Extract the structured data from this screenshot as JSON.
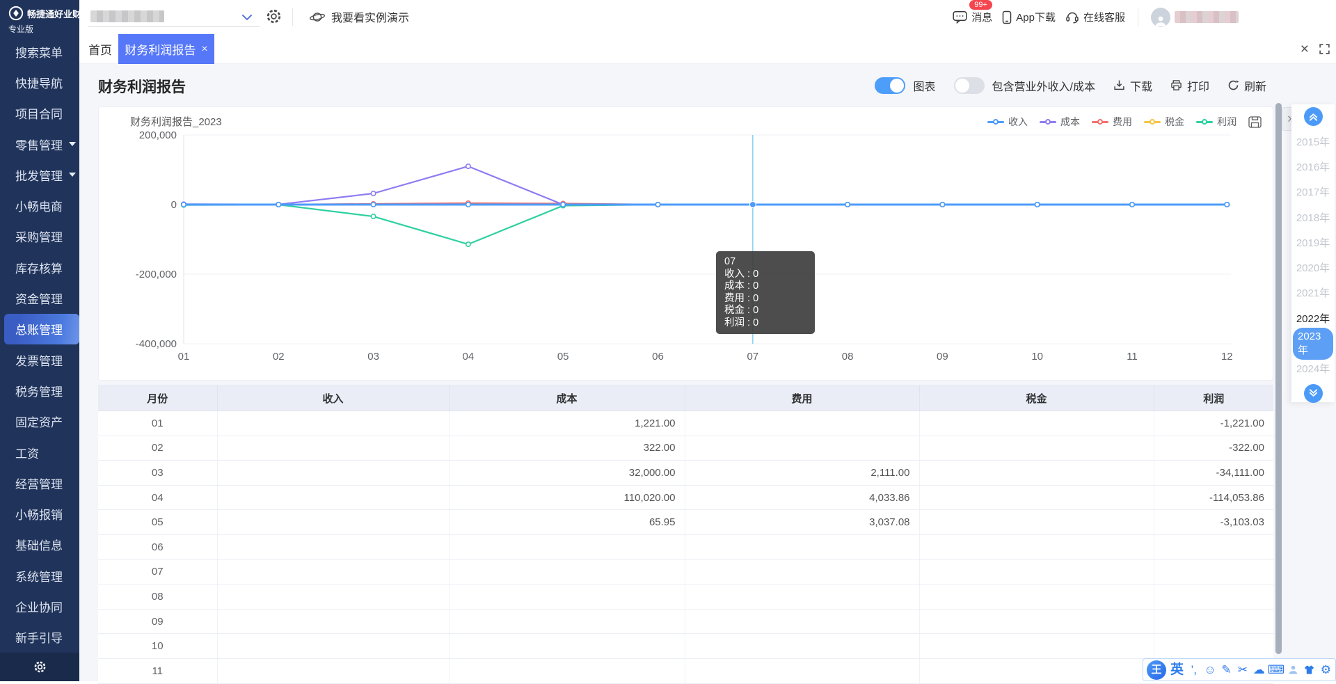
{
  "brand": {
    "title": "畅捷通好业财",
    "edition": "专业版"
  },
  "topbar": {
    "org_selector": {
      "value": "",
      "redacted": true
    },
    "demo_label": "我要看实例演示",
    "messages_label": "消息",
    "messages_badge": "99+",
    "app_download_label": "App下载",
    "support_label": "在线客服",
    "user_name": {
      "value": "",
      "redacted": true
    }
  },
  "tabs": [
    {
      "label": "首页",
      "active": false
    },
    {
      "label": "财务利润报告",
      "active": true,
      "close_icon": "×"
    }
  ],
  "page": {
    "title": "财务利润报告",
    "toggles": [
      {
        "label": "图表",
        "on": true
      },
      {
        "label": "包含营业外收入/成本",
        "on": false
      }
    ],
    "actions": [
      {
        "label": "下载",
        "icon": "download-icon"
      },
      {
        "label": "打印",
        "icon": "print-icon"
      },
      {
        "label": "刷新",
        "icon": "refresh-icon"
      }
    ]
  },
  "sidebar": {
    "items": [
      {
        "label": "搜索菜单"
      },
      {
        "label": "快捷导航"
      },
      {
        "label": "项目合同"
      },
      {
        "label": "零售管理",
        "arrow": true
      },
      {
        "label": "批发管理",
        "arrow": true
      },
      {
        "label": "小畅电商"
      },
      {
        "label": "采购管理"
      },
      {
        "label": "库存核算"
      },
      {
        "label": "资金管理"
      },
      {
        "label": "总账管理",
        "active": true
      },
      {
        "label": "发票管理"
      },
      {
        "label": "税务管理"
      },
      {
        "label": "固定资产"
      },
      {
        "label": "工资"
      },
      {
        "label": "经营管理"
      },
      {
        "label": "小畅报销"
      },
      {
        "label": "基础信息"
      },
      {
        "label": "系统管理"
      },
      {
        "label": "企业协同"
      },
      {
        "label": "新手引导"
      }
    ]
  },
  "chart_data": {
    "type": "line",
    "title": "财务利润报告_2023",
    "categories": [
      "01",
      "02",
      "03",
      "04",
      "05",
      "06",
      "07",
      "08",
      "09",
      "10",
      "11",
      "12"
    ],
    "series": [
      {
        "name": "收入",
        "color": "#4D9BFA",
        "values": [
          0,
          0,
          0,
          0,
          0,
          0,
          0,
          0,
          0,
          0,
          0,
          0
        ]
      },
      {
        "name": "成本",
        "color": "#8F7BF2",
        "values": [
          1221,
          322,
          32000,
          110020,
          65.95,
          0,
          0,
          0,
          0,
          0,
          0,
          0
        ]
      },
      {
        "name": "费用",
        "color": "#F4706C",
        "values": [
          0,
          0,
          2111,
          4033.86,
          3037.08,
          0,
          0,
          0,
          0,
          0,
          0,
          0
        ]
      },
      {
        "name": "税金",
        "color": "#F5C542",
        "values": [
          0,
          0,
          0,
          0,
          0,
          0,
          0,
          0,
          0,
          0,
          0,
          0
        ]
      },
      {
        "name": "利润",
        "color": "#2ED0A0",
        "values": [
          -1221,
          -322,
          -34111,
          -114053.86,
          -3103.03,
          0,
          0,
          0,
          0,
          0,
          0,
          0
        ]
      }
    ],
    "ylim": [
      -400000,
      200000
    ],
    "yticks": [
      {
        "value": 200000,
        "label": "200,000"
      },
      {
        "value": 0,
        "label": "0"
      },
      {
        "value": -200000,
        "label": "-200,000"
      },
      {
        "value": -400000,
        "label": "-400,000"
      }
    ],
    "grid": true,
    "legend_position": "top-right",
    "hover_index": 6,
    "tooltip": {
      "title": "07",
      "items": [
        {
          "label": "收入",
          "value": "0"
        },
        {
          "label": "成本",
          "value": "0"
        },
        {
          "label": "费用",
          "value": "0"
        },
        {
          "label": "税金",
          "value": "0"
        },
        {
          "label": "利润",
          "value": "0"
        }
      ]
    }
  },
  "table": {
    "headers": [
      "月份",
      "收入",
      "成本",
      "费用",
      "税金",
      "利润"
    ],
    "rows": [
      [
        "01",
        "",
        "1,221.00",
        "",
        "",
        "-1,221.00"
      ],
      [
        "02",
        "",
        "322.00",
        "",
        "",
        "-322.00"
      ],
      [
        "03",
        "",
        "32,000.00",
        "2,111.00",
        "",
        "-34,111.00"
      ],
      [
        "04",
        "",
        "110,020.00",
        "4,033.86",
        "",
        "-114,053.86"
      ],
      [
        "05",
        "",
        "65.95",
        "3,037.08",
        "",
        "-3,103.03"
      ],
      [
        "06",
        "",
        "",
        "",
        "",
        ""
      ],
      [
        "07",
        "",
        "",
        "",
        "",
        ""
      ],
      [
        "08",
        "",
        "",
        "",
        "",
        ""
      ],
      [
        "09",
        "",
        "",
        "",
        "",
        ""
      ],
      [
        "10",
        "",
        "",
        "",
        "",
        ""
      ],
      [
        "11",
        "",
        "",
        "",
        "",
        ""
      ]
    ]
  },
  "year_panel": {
    "collapse_icon": "»",
    "years": [
      {
        "label": "2015年",
        "state": "dim"
      },
      {
        "label": "2016年",
        "state": "dim"
      },
      {
        "label": "2017年",
        "state": "dim"
      },
      {
        "label": "2018年",
        "state": "dim"
      },
      {
        "label": "2019年",
        "state": "dim"
      },
      {
        "label": "2020年",
        "state": "dim"
      },
      {
        "label": "2021年",
        "state": "dim"
      },
      {
        "label": "2022年",
        "state": "normal"
      },
      {
        "label": "2023年",
        "state": "active"
      },
      {
        "label": "2024年",
        "state": "dim"
      }
    ]
  },
  "ime": {
    "items": [
      {
        "name": "ime-logo-wang",
        "char": "王",
        "cls": "ime-wang"
      },
      {
        "name": "ime-lang-english",
        "char": "英",
        "cls": "ime-en"
      },
      {
        "name": "ime-punctuation-button",
        "char": "’,"
      },
      {
        "name": "ime-emoji-button",
        "char": "☺"
      },
      {
        "name": "ime-handwriting-button",
        "char": "✎"
      },
      {
        "name": "ime-scissors-button",
        "char": "✂"
      },
      {
        "name": "ime-cloud-button",
        "char": "☁"
      },
      {
        "name": "ime-keyboard-button",
        "char": "⌨"
      },
      {
        "name": "ime-person-button",
        "svg": "person"
      },
      {
        "name": "ime-skin-button",
        "svg": "shirt"
      },
      {
        "name": "ime-settings-button",
        "char": "⚙"
      }
    ]
  }
}
